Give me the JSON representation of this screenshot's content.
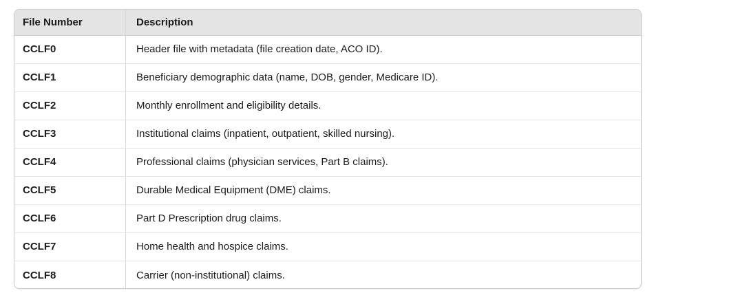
{
  "colors": {
    "header_bg": "#e4e4e4",
    "border": "#cbcbcb",
    "row_divider": "#e4e4e4",
    "text": "#1b1b1b"
  },
  "table": {
    "columns": {
      "file_number": "File Number",
      "description": "Description"
    },
    "rows": [
      {
        "file_number": "CCLF0",
        "description": "Header file with metadata (file creation date, ACO ID)."
      },
      {
        "file_number": "CCLF1",
        "description": "Beneficiary demographic data (name, DOB, gender, Medicare ID)."
      },
      {
        "file_number": "CCLF2",
        "description": "Monthly enrollment and eligibility details."
      },
      {
        "file_number": "CCLF3",
        "description": "Institutional claims (inpatient, outpatient, skilled nursing)."
      },
      {
        "file_number": "CCLF4",
        "description": "Professional claims (physician services, Part B claims)."
      },
      {
        "file_number": "CCLF5",
        "description": "Durable Medical Equipment (DME) claims."
      },
      {
        "file_number": "CCLF6",
        "description": "Part D Prescription drug claims."
      },
      {
        "file_number": "CCLF7",
        "description": "Home health and hospice claims."
      },
      {
        "file_number": "CCLF8",
        "description": "Carrier (non-institutional) claims."
      }
    ]
  }
}
